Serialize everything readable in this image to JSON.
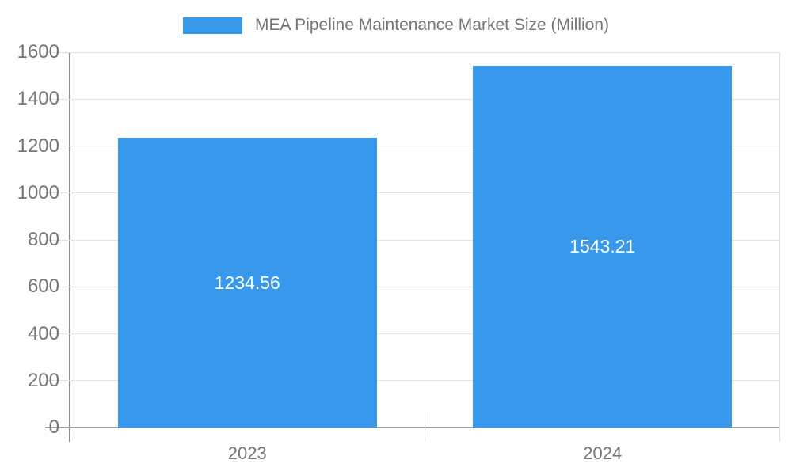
{
  "chart_data": {
    "type": "bar",
    "title": "MEA Pipeline Maintenance Market Size (Million)",
    "categories": [
      "2023",
      "2024"
    ],
    "values": [
      1234.56,
      1543.21
    ],
    "data_labels": [
      "1234.56",
      "1543.21"
    ],
    "xlabel": "",
    "ylabel": "",
    "ylim": [
      0,
      1600
    ],
    "yticks": [
      0,
      200,
      400,
      600,
      800,
      1000,
      1200,
      1400,
      1600
    ],
    "grid": true,
    "legend": {
      "position": "top-center",
      "entries": [
        {
          "label": "MEA Pipeline Maintenance Market Size (Million)",
          "color": "#3899EC"
        }
      ]
    },
    "colors": {
      "bar": "#3899EC",
      "bar_value_text": "#ffffff",
      "axis_text": "#757575",
      "gridline": "#e3e3e3",
      "axis_line": "#8c8c8c"
    }
  }
}
